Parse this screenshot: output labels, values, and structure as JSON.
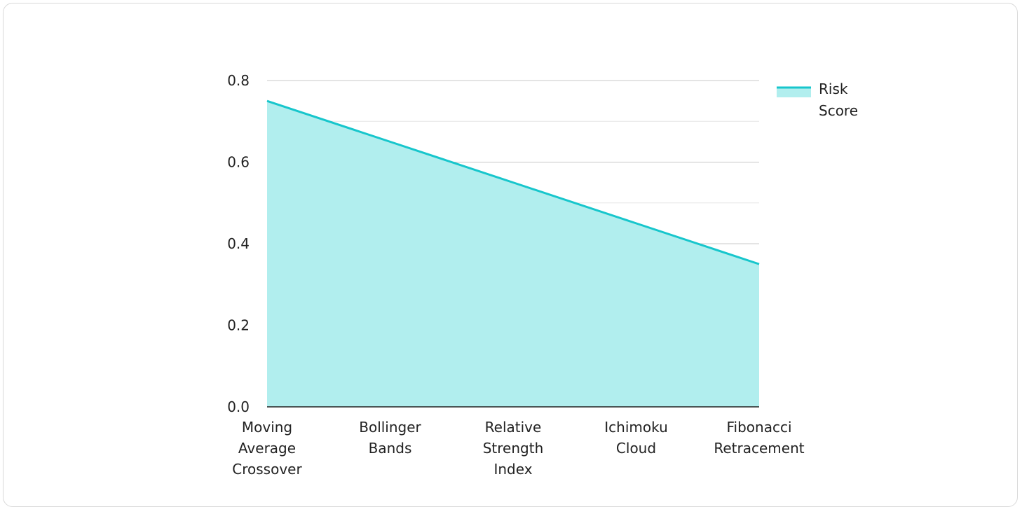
{
  "chart_data": {
    "type": "area",
    "categories": [
      "Moving Average Crossover",
      "Bollinger Bands",
      "Relative Strength Index",
      "Ichimoku Cloud",
      "Fibonacci Retracement"
    ],
    "category_lines": [
      [
        "Moving",
        "Average",
        "Crossover"
      ],
      [
        "Bollinger",
        "Bands"
      ],
      [
        "Relative",
        "Strength",
        "Index"
      ],
      [
        "Ichimoku",
        "Cloud"
      ],
      [
        "Fibonacci",
        "Retracement"
      ]
    ],
    "series": [
      {
        "name": "Risk Score",
        "name_lines": [
          "Risk",
          "Score"
        ],
        "values": [
          0.75,
          0.65,
          0.55,
          0.45,
          0.35
        ],
        "line_color": "#17c6cc",
        "fill_color": "#b1eeee"
      }
    ],
    "ylim": [
      0,
      0.8
    ],
    "y_ticks": [
      "0.0",
      "0.2",
      "0.4",
      "0.6",
      "0.8"
    ],
    "y_tick_values": [
      0,
      0.2,
      0.4,
      0.6,
      0.8
    ],
    "y_minor_tick_values": [
      0.1,
      0.3,
      0.5,
      0.7
    ],
    "grid": true,
    "legend_position": "top-right",
    "title": "",
    "xlabel": "",
    "ylabel": ""
  }
}
